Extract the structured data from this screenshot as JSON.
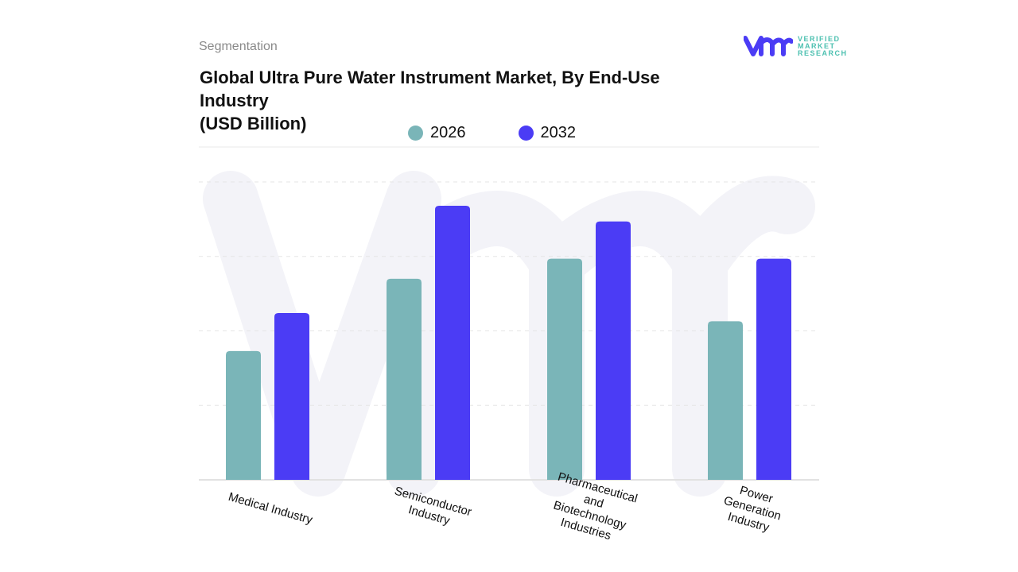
{
  "header": {
    "section": "Segmentation",
    "title": "Global Ultra Pure Water Instrument Market, By End-Use Industry",
    "unit": "(USD Billion)"
  },
  "logo": {
    "line1": "VERIFIED",
    "line2": "MARKET",
    "line3": "RESEARCH"
  },
  "chart_data": {
    "type": "bar",
    "title": "Global Ultra Pure Water Instrument Market, By End-Use Industry (USD Billion)",
    "categories": [
      "Medical Industry",
      "Semiconductor Industry",
      "Pharmaceutical and Biotechnology Industries",
      "Power Generation Industry"
    ],
    "category_label_lines": [
      [
        "Medical Industry"
      ],
      [
        "Semiconductor",
        "Industry"
      ],
      [
        "Pharmaceutical",
        "and",
        "Biotechnology",
        "Industries"
      ],
      [
        "Power",
        "Generation",
        "Industry"
      ]
    ],
    "series": [
      {
        "name": "2026",
        "color": "#7ab5b8",
        "values": [
          1.73,
          2.7,
          2.97,
          2.13
        ]
      },
      {
        "name": "2032",
        "color": "#4b3cf5",
        "values": [
          2.24,
          3.68,
          3.47,
          2.97
        ]
      }
    ],
    "ylim": [
      0,
      4
    ],
    "y_tick_labels_shown": false,
    "grid": true,
    "legend_placement": "top-center",
    "xlabel": "",
    "ylabel": ""
  }
}
